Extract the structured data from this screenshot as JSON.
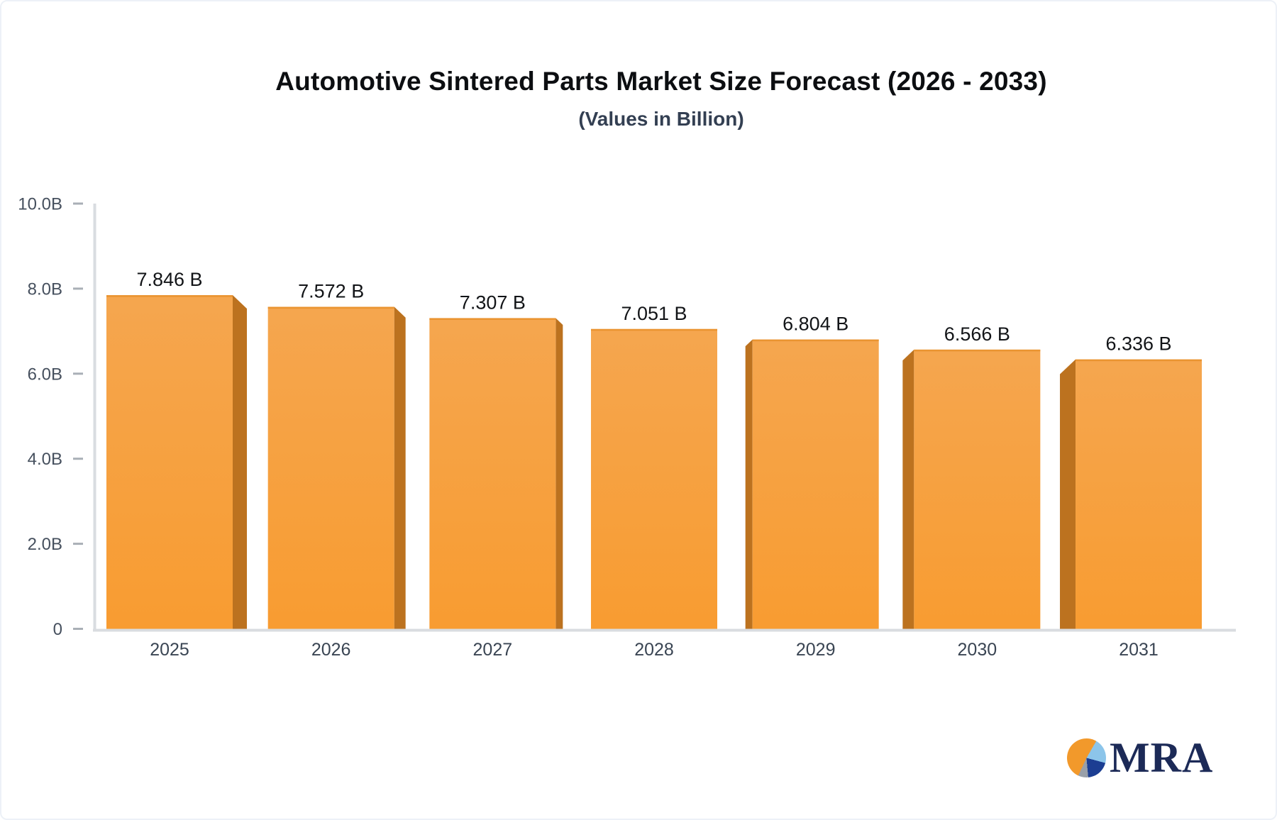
{
  "header": {
    "title": "Automotive Sintered Parts Market Size Forecast (2026 - 2033)",
    "subtitle": "(Values in Billion)"
  },
  "chart_data": {
    "type": "bar",
    "title": "Automotive Sintered Parts Market Size Forecast (2026 - 2033)",
    "subtitle": "(Values in Billion)",
    "categories": [
      "2025",
      "2026",
      "2027",
      "2028",
      "2029",
      "2030",
      "2031"
    ],
    "values": [
      7.846,
      7.572,
      7.307,
      7.051,
      6.804,
      6.566,
      6.336
    ],
    "value_labels": [
      "7.846 B",
      "7.572 B",
      "7.307 B",
      "7.051 B",
      "6.804 B",
      "6.566 B",
      "6.336 B"
    ],
    "xlabel": "",
    "ylabel": "",
    "ylim": [
      0,
      10
    ],
    "yticks": {
      "values": [
        0,
        2,
        4,
        6,
        8,
        10
      ],
      "labels": [
        "0",
        "2.0B",
        "4.0B",
        "6.0B",
        "8.0B",
        "10.0B"
      ]
    },
    "grid": false,
    "legend_position": "none",
    "colors": {
      "bar_gradient_top": "#F5A64F",
      "bar_gradient_bottom": "#F89C31",
      "bar_top_edge": "#E7912C",
      "bar_side": "#BC721F",
      "axis_line": "#D9DCE0",
      "tick_dash": "#A9AFB6",
      "ytick_label": "#46505E",
      "xtick_label": "#3A4553",
      "value_label": "#121417"
    }
  },
  "logo": {
    "text": "MRA",
    "colors": {
      "text": "#1C2A57",
      "pie_orange": "#F2992B",
      "pie_light_blue": "#8CC5EA",
      "pie_navy": "#1C3E92",
      "pie_gray": "#99A0A9"
    }
  }
}
